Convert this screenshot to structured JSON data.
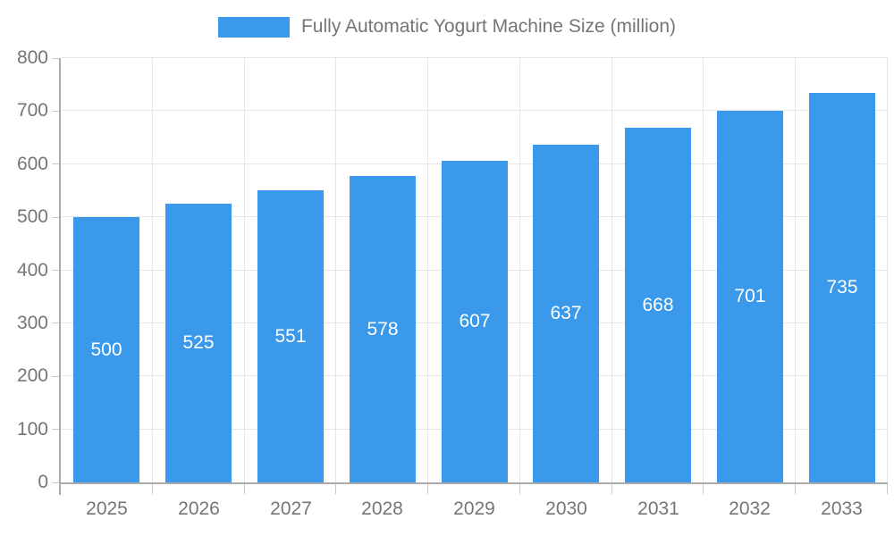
{
  "chart_data": {
    "type": "bar",
    "title": "Fully Automatic Yogurt Machine Size (million)",
    "legend": [
      "Fully Automatic Yogurt Machine Size (million)"
    ],
    "legend_position": "top-center",
    "categories": [
      "2025",
      "2026",
      "2027",
      "2028",
      "2029",
      "2030",
      "2031",
      "2032",
      "2033"
    ],
    "values": [
      500,
      525,
      551,
      578,
      607,
      637,
      668,
      701,
      735
    ],
    "xlabel": "",
    "ylabel": "",
    "ylim": [
      0,
      800
    ],
    "yticks": [
      0,
      100,
      200,
      300,
      400,
      500,
      600,
      700,
      800
    ],
    "grid": true,
    "value_labels_shown": true,
    "colors": {
      "bar": "#3B99EC",
      "value_label": "#FFFFFF",
      "axis_text": "#757575",
      "axis_line": "#ABABAB",
      "gridline": "#E6E6E6",
      "tick": "#C9C9C9",
      "background": "#FFFFFF"
    }
  }
}
